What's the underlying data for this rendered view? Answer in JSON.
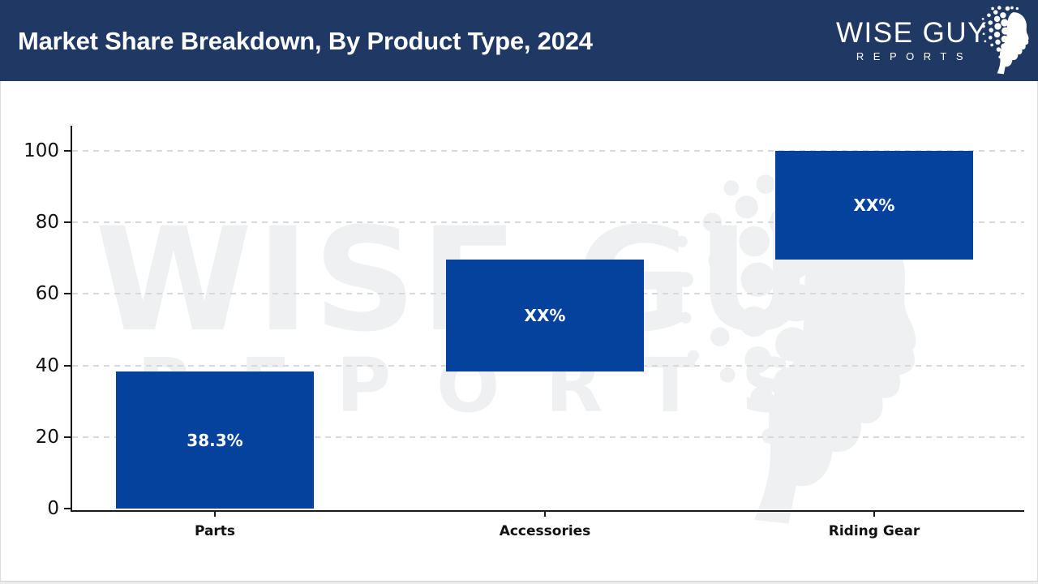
{
  "header": {
    "title": "Market Share Breakdown, By Product Type, 2024",
    "logo": {
      "line1": "WISE GUY",
      "line2": "REPORTS"
    }
  },
  "watermark": {
    "line1": "WISE GUY",
    "line2": "REPORTS"
  },
  "colors": {
    "header_bg": "#1f3864",
    "bar": "#05429d",
    "bar_label": "#ffffff",
    "grid": "#d9d9d9",
    "axis": "#1a1a1a",
    "tick_text": "#111111",
    "watermark": "#eff0f2"
  },
  "chart_data": {
    "type": "bar",
    "subtype": "waterfall",
    "title": "Market Share Breakdown, By Product Type, 2024",
    "categories": [
      "Parts",
      "Accessories",
      "Riding Gear"
    ],
    "segments": [
      {
        "category": "Parts",
        "start": 0,
        "end": 38.3,
        "label": "38.3%"
      },
      {
        "category": "Accessories",
        "start": 38.3,
        "end": 69.6,
        "label": "XX%"
      },
      {
        "category": "Riding Gear",
        "start": 69.6,
        "end": 100,
        "label": "XX%"
      }
    ],
    "values": [
      38.3,
      31.3,
      30.4
    ],
    "cumulative": [
      38.3,
      69.6,
      100
    ],
    "xlabel": "",
    "ylabel": "",
    "ylim": [
      0,
      100
    ],
    "yticks": [
      0,
      20,
      40,
      60,
      80,
      100
    ],
    "grid": "horizontal-dashed",
    "legend": "none"
  }
}
